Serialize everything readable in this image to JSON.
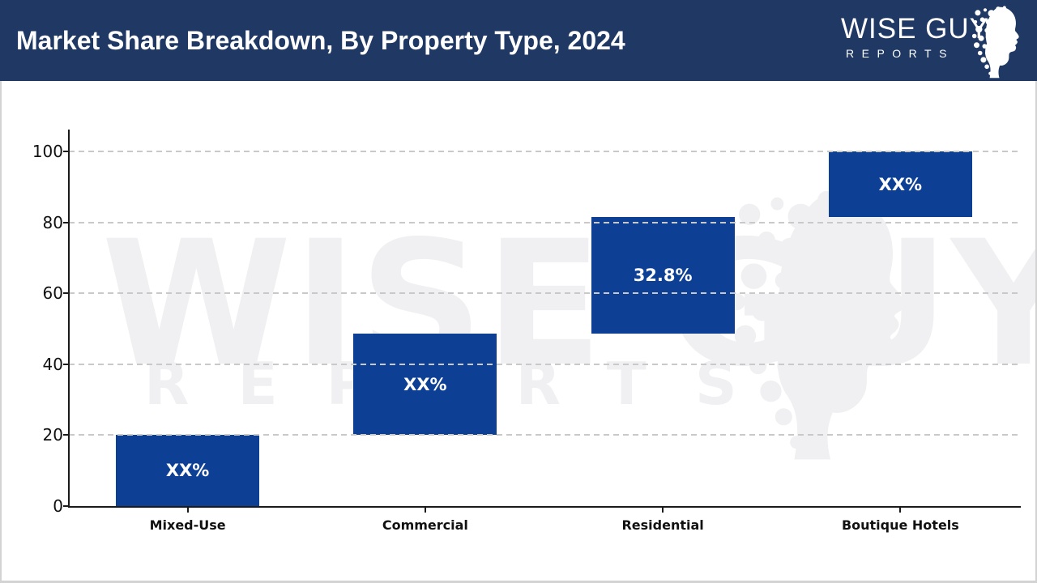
{
  "header": {
    "title": "Market Share Breakdown, By Property Type, 2024",
    "bg_color": "#1f3864",
    "logo": {
      "line1": "WISE GUY",
      "line2": "REPORTS"
    }
  },
  "watermark": {
    "line1": "WISE GUY",
    "line2": "REPORTS"
  },
  "chart_data": {
    "type": "bar",
    "subtype": "waterfall",
    "title": "Market Share Breakdown, By Property Type, 2024",
    "categories": [
      "Mixed-Use",
      "Commercial",
      "Residential",
      "Boutique Hotels"
    ],
    "segments": [
      {
        "category": "Mixed-Use",
        "start": 0,
        "end": 20,
        "label": "XX%"
      },
      {
        "category": "Commercial",
        "start": 20,
        "end": 48.6,
        "label": "XX%"
      },
      {
        "category": "Residential",
        "start": 48.6,
        "end": 81.4,
        "label": "32.8%"
      },
      {
        "category": "Boutique Hotels",
        "start": 81.4,
        "end": 100,
        "label": "XX%"
      }
    ],
    "y_ticks": [
      0,
      20,
      40,
      60,
      80,
      100
    ],
    "ylim": [
      0,
      100
    ],
    "xlabel": "",
    "ylabel": "",
    "grid": true,
    "legend": "none",
    "bar_color": "#0d4095",
    "bar_label_color": "#ffffff",
    "grid_color": "#c9c9c9",
    "axis_color": "#1a1a1a",
    "header_color": "#1f3864",
    "watermark_color": "#f0f0f2"
  }
}
